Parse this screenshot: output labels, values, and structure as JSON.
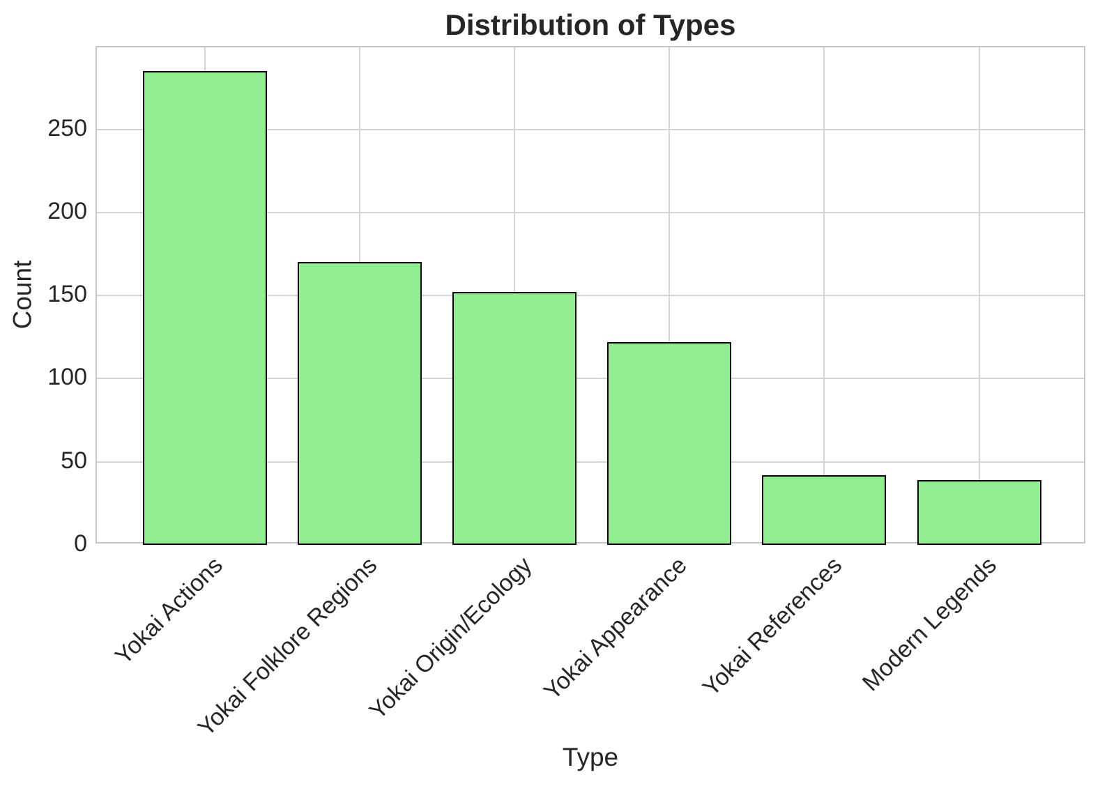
{
  "chart_data": {
    "type": "bar",
    "title": "Distribution of Types",
    "xlabel": "Type",
    "ylabel": "Count",
    "categories": [
      "Yokai Actions",
      "Yokai Folklore Regions",
      "Yokai Origin/Ecology",
      "Yokai Appearance",
      "Yokai References",
      "Modern Legends"
    ],
    "values": [
      285,
      170,
      152,
      122,
      42,
      39
    ],
    "yticks": [
      0,
      50,
      100,
      150,
      200,
      250
    ],
    "ylim": [
      0,
      299.25
    ],
    "grid": true,
    "legend": "none",
    "x_tick_rotation_deg": 45,
    "colors": {
      "bar_fill": "#90EE90",
      "bar_edge": "#000000",
      "grid": "#d4d4d4",
      "spine": "#c6c6c6",
      "text": "#262626",
      "background": "#ffffff"
    }
  }
}
